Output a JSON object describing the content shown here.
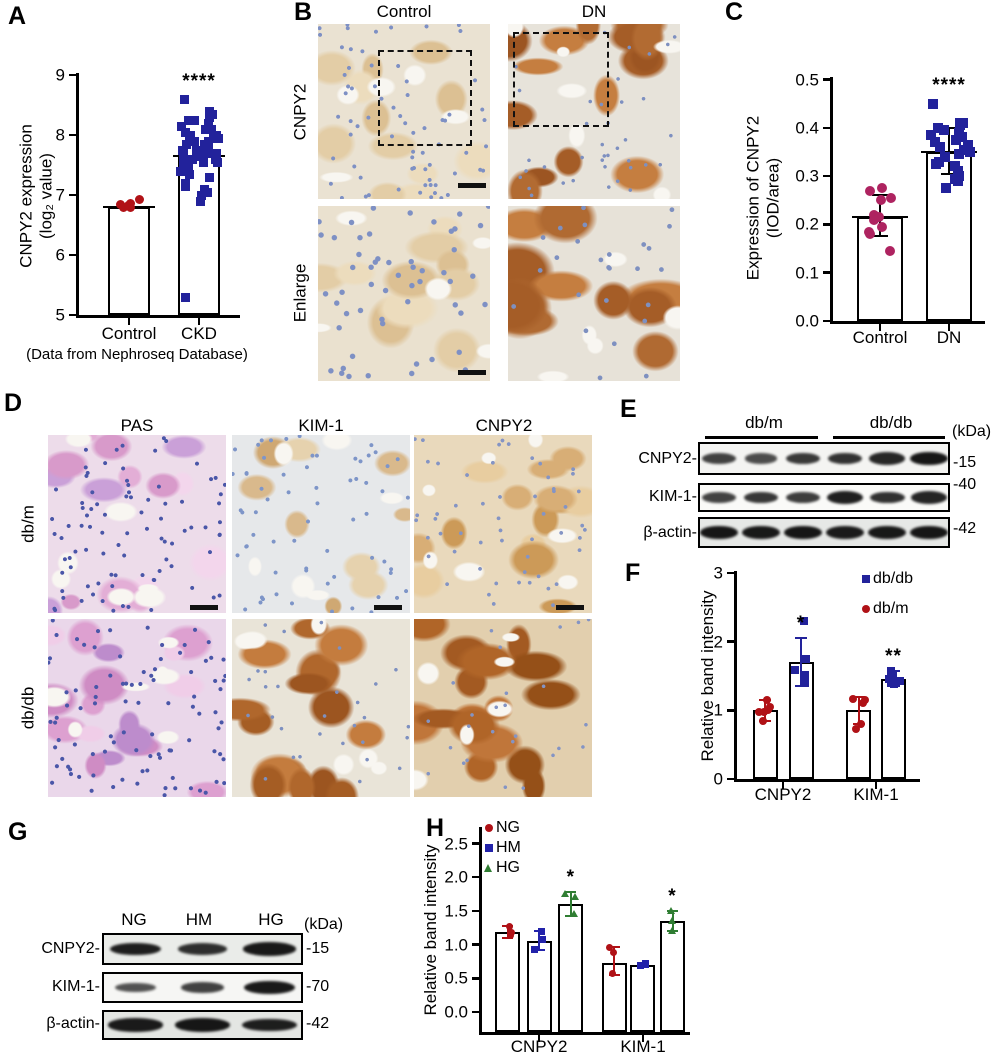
{
  "panels": {
    "A": {
      "label": "A"
    },
    "B": {
      "label": "B",
      "col_headers": [
        "Control",
        "DN"
      ],
      "row_headers": [
        "CNPY2",
        "Enlarge"
      ],
      "stains": [
        [
          "weak-brown",
          "strong-brown"
        ],
        [
          "weak-brown-enlarged",
          "strong-brown-enlarged"
        ]
      ]
    },
    "C": {
      "label": "C"
    },
    "D": {
      "label": "D",
      "col_headers": [
        "PAS",
        "KIM-1",
        "CNPY2"
      ],
      "row_headers": [
        "db/m",
        "db/db"
      ],
      "stains": [
        [
          "pas",
          "weak-brown",
          "moderate-brown"
        ],
        [
          "pas",
          "strong-brown",
          "strong-brown"
        ]
      ]
    },
    "E": {
      "label": "E",
      "group_headers": [
        "db/m",
        "db/db"
      ],
      "kda_label": "(kDa)",
      "rows": [
        {
          "protein": "CNPY2-",
          "kda": "-15",
          "bands": [
            0.55,
            0.45,
            0.62,
            0.68,
            0.78,
            0.92
          ]
        },
        {
          "protein": "KIM-1-",
          "kda": "-40",
          "bands": [
            0.55,
            0.65,
            0.6,
            0.85,
            0.7,
            0.8
          ]
        },
        {
          "protein": "β-actin-",
          "kda": "-42",
          "bands": [
            0.92,
            0.9,
            0.92,
            0.88,
            0.9,
            0.92
          ]
        }
      ]
    },
    "F": {
      "label": "F"
    },
    "G": {
      "label": "G",
      "lane_headers": [
        "NG",
        "HM",
        "HG"
      ],
      "kda_label": "(kDa)",
      "rows": [
        {
          "protein": "CNPY2-",
          "kda": "-15",
          "bands": [
            0.85,
            0.7,
            0.9
          ]
        },
        {
          "protein": "KIM-1-",
          "kda": "-70",
          "bands": [
            0.4,
            0.55,
            0.9
          ]
        },
        {
          "protein": "β-actin-",
          "kda": "-42",
          "bands": [
            0.88,
            0.92,
            0.85
          ]
        }
      ]
    },
    "H": {
      "label": "H"
    }
  },
  "chart_data": [
    {
      "id": "A",
      "type": "bar-scatter",
      "ylabel_lines": [
        "CNPY2 expression",
        "(log₂ value)"
      ],
      "caption": "(Data from Nephroseq Database)",
      "ylim": [
        5,
        9
      ],
      "yticks": [
        5,
        6,
        7,
        8,
        9
      ],
      "categories": [
        "Control",
        "CKD"
      ],
      "groups": [
        {
          "name": "Control",
          "marker": "circle",
          "color": "#b11217",
          "bar_mean": 6.8,
          "sig": "",
          "points": [
            6.8,
            6.85,
            6.92,
            6.86,
            6.8,
            6.83
          ]
        },
        {
          "name": "CKD",
          "marker": "square",
          "color": "#22229b",
          "bar_mean": 7.65,
          "sig": "****",
          "points": [
            8.6,
            8.4,
            8.35,
            8.3,
            8.25,
            8.25,
            8.2,
            8.15,
            8.1,
            8.1,
            8.05,
            8.0,
            8.0,
            7.95,
            7.95,
            7.9,
            7.9,
            7.9,
            7.85,
            7.85,
            7.85,
            7.8,
            7.8,
            7.8,
            7.75,
            7.75,
            7.75,
            7.7,
            7.7,
            7.7,
            7.65,
            7.65,
            7.6,
            7.6,
            7.6,
            7.55,
            7.55,
            7.5,
            7.5,
            7.45,
            7.4,
            7.35,
            7.3,
            7.2,
            7.15,
            7.1,
            7.05,
            7.0,
            6.9,
            5.3
          ]
        }
      ]
    },
    {
      "id": "C",
      "type": "bar-scatter",
      "ylabel_lines": [
        "Expression of CNPY2",
        "(IOD/area)"
      ],
      "ylim": [
        0,
        0.5
      ],
      "yticks": [
        0,
        0.1,
        0.2,
        0.3,
        0.4,
        0.5
      ],
      "categories": [
        "Control",
        "DN"
      ],
      "groups": [
        {
          "name": "Control",
          "marker": "circle",
          "color": "#ae2360",
          "bar_mean": 0.215,
          "err": [
            0.175,
            0.26
          ],
          "sig": "",
          "points": [
            0.275,
            0.27,
            0.255,
            0.25,
            0.22,
            0.215,
            0.21,
            0.195,
            0.185,
            0.18,
            0.145
          ]
        },
        {
          "name": "DN",
          "marker": "square",
          "color": "#22229b",
          "bar_mean": 0.35,
          "err": [
            0.305,
            0.4
          ],
          "sig": "****",
          "points": [
            0.45,
            0.41,
            0.41,
            0.405,
            0.4,
            0.395,
            0.39,
            0.385,
            0.38,
            0.375,
            0.37,
            0.365,
            0.36,
            0.355,
            0.35,
            0.345,
            0.34,
            0.33,
            0.325,
            0.32,
            0.31,
            0.3,
            0.295,
            0.29,
            0.275
          ]
        }
      ]
    },
    {
      "id": "F",
      "type": "grouped-bar-scatter",
      "ylabel": "Relative band intensity",
      "ylim": [
        0,
        3
      ],
      "yticks": [
        0,
        1,
        2,
        3
      ],
      "categories": [
        "CNPY2",
        "KIM-1"
      ],
      "legend": [
        {
          "name": "db/db",
          "marker": "square",
          "color": "#22229b"
        },
        {
          "name": "db/m",
          "marker": "circle",
          "color": "#b01116"
        }
      ],
      "series": [
        {
          "name": "db/m",
          "marker": "circle",
          "color": "#b01116",
          "values": [
            1.0,
            1.0
          ],
          "errs": [
            [
              0.85,
              1.15
            ],
            [
              0.8,
              1.2
            ]
          ],
          "points": [
            [
              1.15,
              1.05,
              1.0,
              0.98,
              0.97,
              0.85
            ],
            [
              1.17,
              1.15,
              1.1,
              0.8,
              0.73
            ]
          ],
          "sigs": [
            "",
            ""
          ]
        },
        {
          "name": "db/db",
          "marker": "square",
          "color": "#22229b",
          "values": [
            1.7,
            1.45
          ],
          "errs": [
            [
              1.35,
              2.05
            ],
            [
              1.35,
              1.57
            ]
          ],
          "points": [
            [
              2.3,
              1.75,
              1.58,
              1.52,
              1.4
            ],
            [
              1.57,
              1.5,
              1.45,
              1.42,
              1.4,
              1.38
            ]
          ],
          "sigs": [
            "*",
            "**"
          ]
        }
      ]
    },
    {
      "id": "H",
      "type": "grouped-bar-scatter",
      "ylabel": "Relative band intensity",
      "ylim": [
        0,
        2.5
      ],
      "yticks": [
        0,
        0.5,
        1.0,
        1.5,
        2.0,
        2.5
      ],
      "categories": [
        "CNPY2",
        "KIM-1"
      ],
      "legend": [
        {
          "name": "NG",
          "marker": "circle",
          "color": "#b01116"
        },
        {
          "name": "HM",
          "marker": "square",
          "color": "#2222aa"
        },
        {
          "name": "HG",
          "marker": "triangle",
          "color": "#2f7d32"
        }
      ],
      "series": [
        {
          "name": "NG",
          "marker": "circle",
          "color": "#b01116",
          "values": [
            1.18,
            0.73
          ],
          "errs": [
            [
              1.1,
              1.27
            ],
            [
              0.55,
              0.96
            ]
          ],
          "points": [
            [
              1.27,
              1.18,
              1.14
            ],
            [
              0.95,
              0.88,
              0.57
            ]
          ],
          "sigs": [
            "",
            ""
          ]
        },
        {
          "name": "HM",
          "marker": "square",
          "color": "#2222aa",
          "values": [
            1.06,
            0.7
          ],
          "errs": [
            [
              0.92,
              1.2
            ],
            [
              0.67,
              0.73
            ]
          ],
          "points": [
            [
              1.2,
              1.07,
              0.93
            ],
            [
              0.72,
              0.7,
              0.69
            ]
          ],
          "sigs": [
            "",
            ""
          ]
        },
        {
          "name": "HG",
          "marker": "triangle",
          "color": "#2f7d32",
          "values": [
            1.6,
            1.35
          ],
          "errs": [
            [
              1.42,
              1.78
            ],
            [
              1.2,
              1.5
            ]
          ],
          "points": [
            [
              1.75,
              1.71,
              1.45
            ],
            [
              1.5,
              1.35,
              1.21
            ]
          ],
          "sigs": [
            "*",
            "*"
          ]
        }
      ]
    }
  ]
}
